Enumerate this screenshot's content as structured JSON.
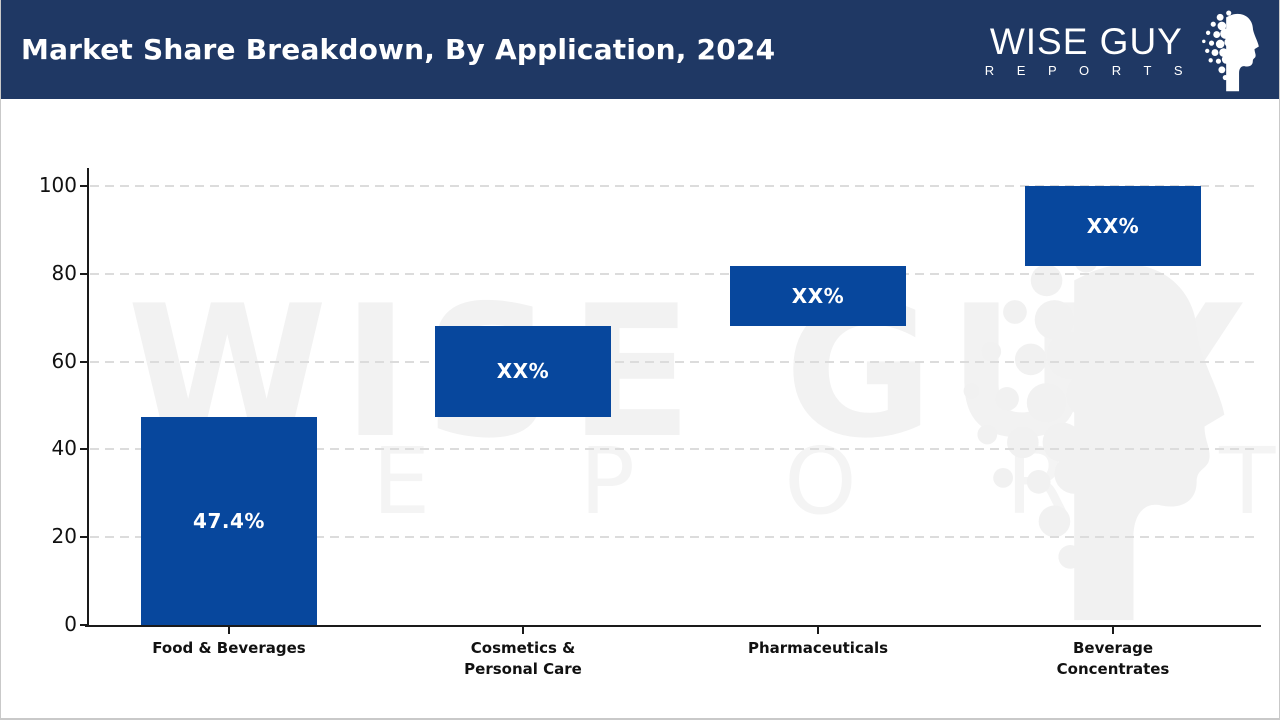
{
  "header": {
    "title": "Market Share Breakdown, By Application, 2024",
    "bg_color": "#1f3864",
    "logo": {
      "line1": "WISE GUY",
      "line2": "R E P O R T S"
    }
  },
  "watermark": {
    "line1": "WISE GUY",
    "line2": "R E P O R T S"
  },
  "chart_data": {
    "type": "bar",
    "variant": "waterfall",
    "title": "Market Share Breakdown, By Application, 2024",
    "categories": [
      "Food & Beverages",
      "Cosmetics & Personal Care",
      "Pharmaceuticals",
      "Beverage Concentrates"
    ],
    "categories_lines": [
      [
        "Food & Beverages"
      ],
      [
        "Cosmetics &",
        "Personal Care"
      ],
      [
        "Pharmaceuticals"
      ],
      [
        "Beverage",
        "Concentrates"
      ]
    ],
    "segments": [
      {
        "category": "Food & Beverages",
        "start": 0,
        "end": 47.4,
        "value_label": "47.4%"
      },
      {
        "category": "Cosmetics & Personal Care",
        "start": 47.4,
        "end": 68.1,
        "value_label": "XX%"
      },
      {
        "category": "Pharmaceuticals",
        "start": 68.1,
        "end": 81.8,
        "value_label": "XX%"
      },
      {
        "category": "Beverage Concentrates",
        "start": 81.8,
        "end": 100,
        "value_label": "XX%"
      }
    ],
    "bar_value_labels": [
      "47.4%",
      "XX%",
      "XX%",
      "XX%"
    ],
    "yticks": [
      0,
      20,
      40,
      60,
      80,
      100
    ],
    "ylim": [
      0,
      105
    ],
    "xlabel": "",
    "ylabel": "",
    "legend": "none",
    "grid": "horizontal-dashed",
    "colors": {
      "bar": "#07479d",
      "grid": "#dcdcdc",
      "axis": "#1a1a1a",
      "value_label": "#ffffff",
      "header": "#1f3864",
      "watermark": "#f2f2f2"
    }
  }
}
